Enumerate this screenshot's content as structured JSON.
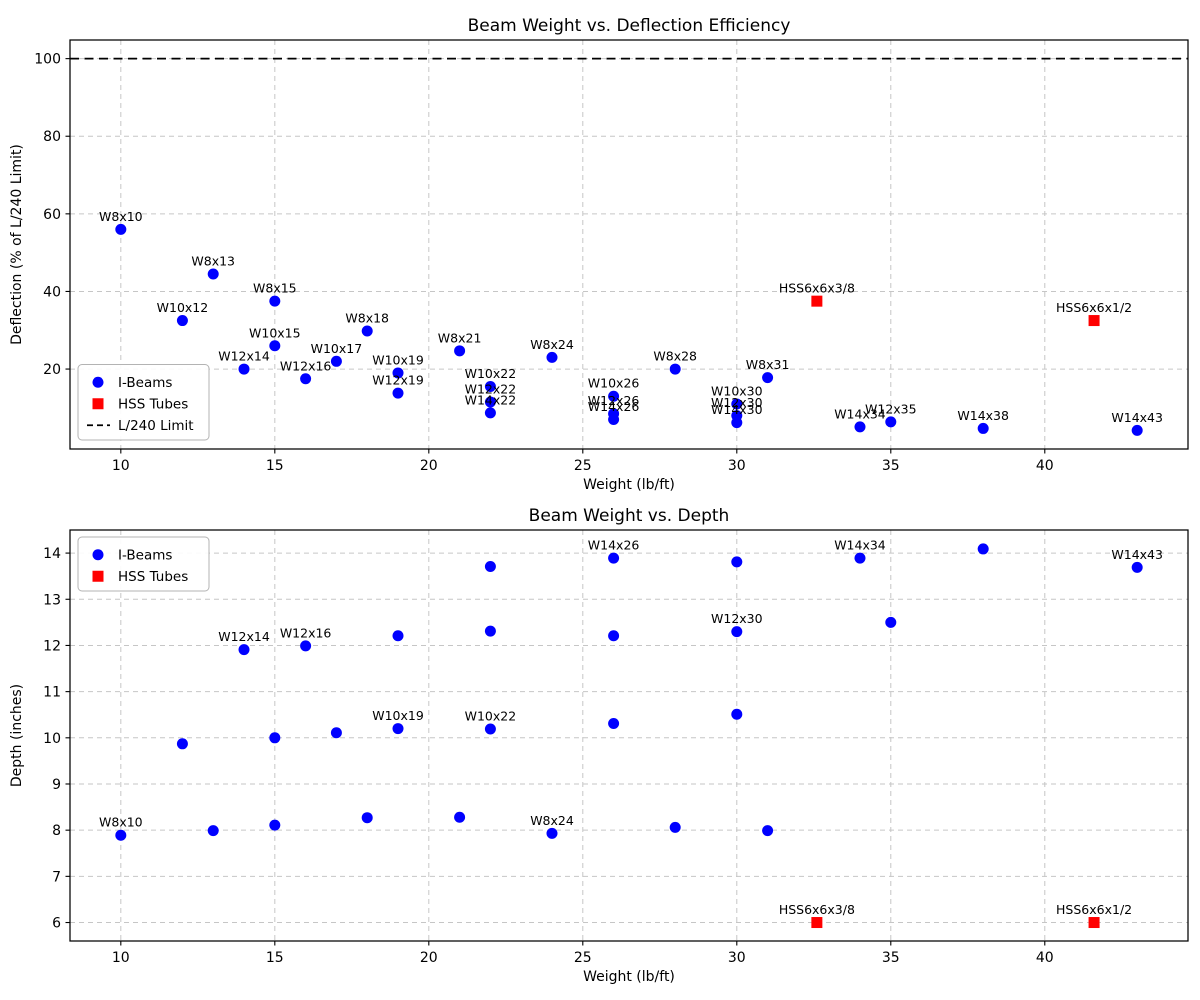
{
  "figure": {
    "background": "#ffffff"
  },
  "chart_data": [
    {
      "type": "scatter",
      "title": "Beam Weight vs. Deflection Efficiency",
      "xlabel": "Weight (lb/ft)",
      "ylabel": "Deflection (% of L/240 Limit)",
      "xlim": [
        8.35,
        44.65
      ],
      "ylim": [
        -0.6,
        104.8
      ],
      "xticks": [
        10,
        15,
        20,
        25,
        30,
        35,
        40
      ],
      "yticks": [
        20,
        40,
        60,
        80,
        100
      ],
      "grid": true,
      "hline": {
        "y": 100,
        "style": "dashed",
        "color": "#000000"
      },
      "legend": {
        "position": "lower left",
        "entries": [
          {
            "label": "I-Beams",
            "marker": "circle",
            "color": "#0000ff"
          },
          {
            "label": "HSS Tubes",
            "marker": "square",
            "color": "#ff0000"
          },
          {
            "label": "L/240 Limit",
            "marker": "dashed-line",
            "color": "#000000"
          }
        ]
      },
      "series": [
        {
          "name": "I-Beams",
          "marker": "circle",
          "color": "#0000ff",
          "points": [
            {
              "x": 10,
              "y": 56,
              "label": "W8x10"
            },
            {
              "x": 12,
              "y": 32.5,
              "label": "W10x12"
            },
            {
              "x": 13,
              "y": 44.5,
              "label": "W8x13"
            },
            {
              "x": 14,
              "y": 20,
              "label": "W12x14"
            },
            {
              "x": 15,
              "y": 37.5,
              "label": "W8x15"
            },
            {
              "x": 15,
              "y": 26,
              "label": "W10x15"
            },
            {
              "x": 16,
              "y": 17.5,
              "label": "W12x16"
            },
            {
              "x": 17,
              "y": 22,
              "label": "W10x17"
            },
            {
              "x": 18,
              "y": 29.8,
              "label": "W8x18"
            },
            {
              "x": 19,
              "y": 19,
              "label": "W10x19"
            },
            {
              "x": 19,
              "y": 13.8,
              "label": "W12x19"
            },
            {
              "x": 21,
              "y": 24.7,
              "label": "W8x21"
            },
            {
              "x": 22,
              "y": 15.5,
              "label": "W10x22"
            },
            {
              "x": 22,
              "y": 11.5,
              "label": "W12x22"
            },
            {
              "x": 22,
              "y": 8.7,
              "label": "W14x22"
            },
            {
              "x": 24,
              "y": 23,
              "label": "W8x24"
            },
            {
              "x": 26,
              "y": 13,
              "label": "W10x26"
            },
            {
              "x": 26,
              "y": 8.5,
              "label": "W12x26"
            },
            {
              "x": 26,
              "y": 7,
              "label": "W14x26"
            },
            {
              "x": 28,
              "y": 20,
              "label": "W8x28"
            },
            {
              "x": 30,
              "y": 11,
              "label": "W10x30"
            },
            {
              "x": 30,
              "y": 8,
              "label": "W12x30"
            },
            {
              "x": 30,
              "y": 6.2,
              "label": "W14x30"
            },
            {
              "x": 31,
              "y": 17.8,
              "label": "W8x31"
            },
            {
              "x": 34,
              "y": 5.1,
              "label": "W14x34"
            },
            {
              "x": 35,
              "y": 6.4,
              "label": "W12x35"
            },
            {
              "x": 38,
              "y": 4.7,
              "label": "W14x38"
            },
            {
              "x": 43,
              "y": 4.2,
              "label": "W14x43"
            }
          ]
        },
        {
          "name": "HSS Tubes",
          "marker": "square",
          "color": "#ff0000",
          "points": [
            {
              "x": 32.6,
              "y": 37.5,
              "label": "HSS6x6x3/8"
            },
            {
              "x": 41.6,
              "y": 32.5,
              "label": "HSS6x6x1/2"
            }
          ]
        }
      ]
    },
    {
      "type": "scatter",
      "title": "Beam Weight vs. Depth",
      "xlabel": "Weight (lb/ft)",
      "ylabel": "Depth (inches)",
      "xlim": [
        8.35,
        44.65
      ],
      "ylim": [
        5.6,
        14.5
      ],
      "xticks": [
        10,
        15,
        20,
        25,
        30,
        35,
        40
      ],
      "yticks": [
        6,
        7,
        8,
        9,
        10,
        11,
        12,
        13,
        14
      ],
      "grid": true,
      "legend": {
        "position": "upper left",
        "entries": [
          {
            "label": "I-Beams",
            "marker": "circle",
            "color": "#0000ff"
          },
          {
            "label": "HSS Tubes",
            "marker": "square",
            "color": "#ff0000"
          }
        ]
      },
      "series": [
        {
          "name": "I-Beams",
          "marker": "circle",
          "color": "#0000ff",
          "points": [
            {
              "x": 10,
              "y": 7.89,
              "label": "W8x10"
            },
            {
              "x": 12,
              "y": 9.87
            },
            {
              "x": 13,
              "y": 7.99
            },
            {
              "x": 14,
              "y": 11.91,
              "label": "W12x14"
            },
            {
              "x": 15,
              "y": 8.11
            },
            {
              "x": 15,
              "y": 10.0
            },
            {
              "x": 16,
              "y": 11.99,
              "label": "W12x16"
            },
            {
              "x": 17,
              "y": 10.11
            },
            {
              "x": 18,
              "y": 8.27
            },
            {
              "x": 19,
              "y": 10.2,
              "label": "W10x19"
            },
            {
              "x": 19,
              "y": 12.21
            },
            {
              "x": 21,
              "y": 8.28
            },
            {
              "x": 22,
              "y": 10.19,
              "label": "W10x22"
            },
            {
              "x": 22,
              "y": 12.31
            },
            {
              "x": 22,
              "y": 13.71
            },
            {
              "x": 24,
              "y": 7.93,
              "label": "W8x24"
            },
            {
              "x": 26,
              "y": 10.31
            },
            {
              "x": 26,
              "y": 12.21
            },
            {
              "x": 26,
              "y": 13.89,
              "label": "W14x26"
            },
            {
              "x": 28,
              "y": 8.06
            },
            {
              "x": 30,
              "y": 10.51
            },
            {
              "x": 30,
              "y": 12.3,
              "label": "W12x30"
            },
            {
              "x": 30,
              "y": 13.81
            },
            {
              "x": 31,
              "y": 7.99
            },
            {
              "x": 34,
              "y": 13.89,
              "label": "W14x34"
            },
            {
              "x": 35,
              "y": 12.5
            },
            {
              "x": 38,
              "y": 14.09
            },
            {
              "x": 43,
              "y": 13.69,
              "label": "W14x43"
            }
          ]
        },
        {
          "name": "HSS Tubes",
          "marker": "square",
          "color": "#ff0000",
          "points": [
            {
              "x": 32.6,
              "y": 6.0,
              "label": "HSS6x6x3/8"
            },
            {
              "x": 41.6,
              "y": 6.0,
              "label": "HSS6x6x1/2"
            }
          ]
        }
      ]
    }
  ]
}
